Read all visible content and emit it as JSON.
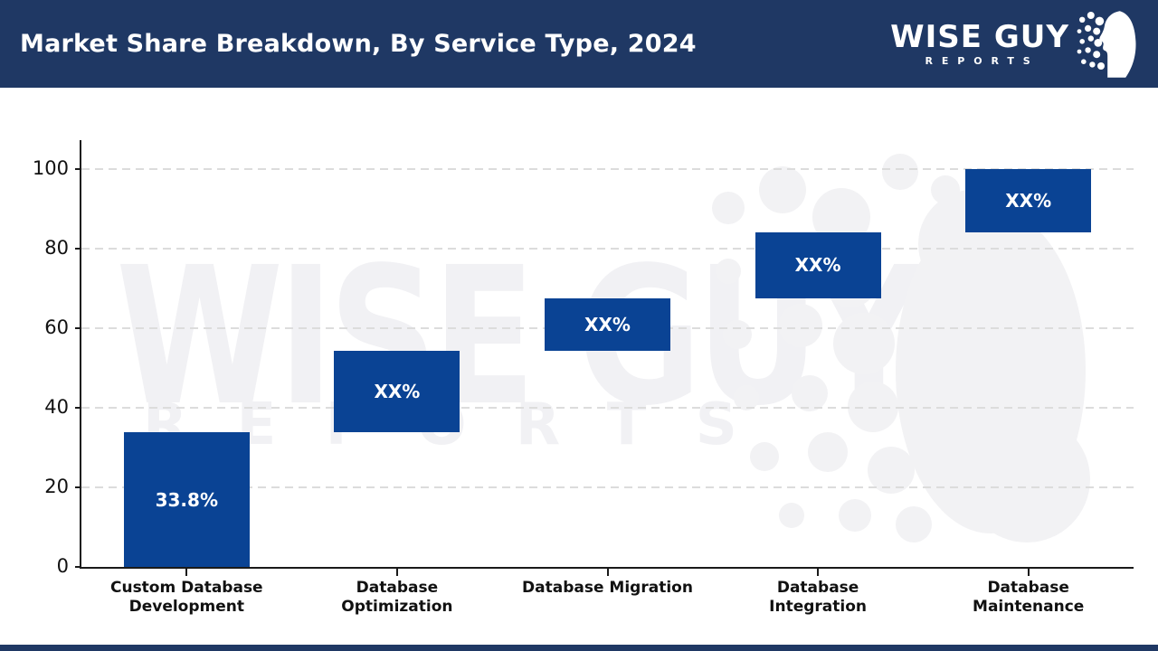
{
  "header": {
    "title": "Market Share Breakdown, By Service Type, 2024",
    "logo": {
      "wordmark": "WISE GUY",
      "subtext": "REPORTS"
    }
  },
  "watermark": {
    "wordmark": "WISE GUY",
    "subtext": "REPORTS"
  },
  "colors": {
    "header_bg": "#1F3864",
    "bar": "#0A4394",
    "bar_label": "#ffffff",
    "gridline": "#dcdcdc",
    "axis": "#1a1a1a",
    "watermark": "#f1f1f4"
  },
  "chart_data": {
    "type": "bar",
    "subtype": "waterfall",
    "title": "Market Share Breakdown, By Service Type, 2024",
    "xlabel": "",
    "ylabel": "",
    "ylim": [
      0,
      107
    ],
    "yticks": [
      0,
      20,
      40,
      60,
      80,
      100
    ],
    "grid": "horizontal dashed",
    "legend": null,
    "categories": [
      "Custom Database\nDevelopment",
      "Database\nOptimization",
      "Database Migration",
      "Database\nIntegration",
      "Database\nMaintenance"
    ],
    "segments": [
      {
        "category": "Custom Database Development",
        "start": 0,
        "end": 33.8,
        "value": 33.8,
        "label": "33.8%"
      },
      {
        "category": "Database Optimization",
        "start": 33.8,
        "end": 54.3,
        "value": 20.5,
        "label": "XX%"
      },
      {
        "category": "Database Migration",
        "start": 54.3,
        "end": 67.6,
        "value": 13.3,
        "label": "XX%"
      },
      {
        "category": "Database Integration",
        "start": 67.6,
        "end": 84.1,
        "value": 16.5,
        "label": "XX%"
      },
      {
        "category": "Database Maintenance",
        "start": 84.1,
        "end": 100,
        "value": 15.9,
        "label": "XX%"
      }
    ]
  }
}
